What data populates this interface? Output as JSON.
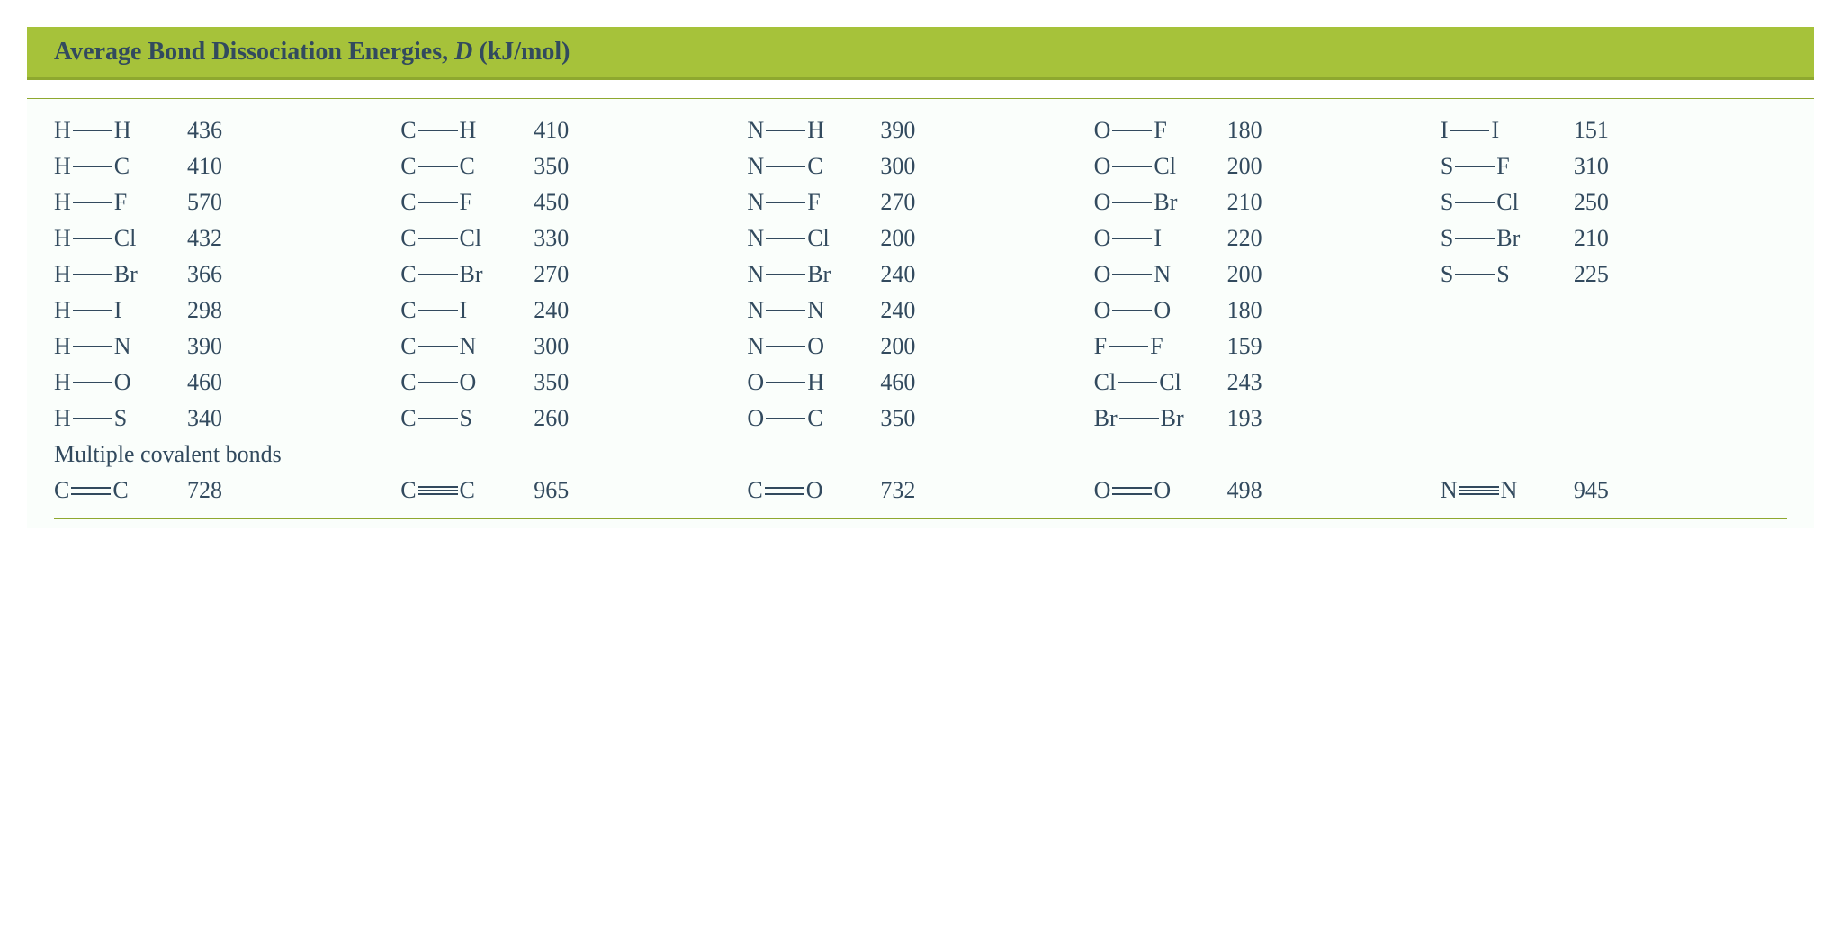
{
  "colors": {
    "header_bg": "#a6c23a",
    "header_border": "#8ea82f",
    "text": "#324a5e",
    "rule": "#8ea82f",
    "body_bg": "#fafefb"
  },
  "title_prefix": "Average Bond Dissociation Energies, ",
  "title_italic": "D",
  "title_suffix": " (kJ/mol)",
  "single_bonds": [
    [
      [
        "H",
        "H",
        "436"
      ],
      [
        "C",
        "H",
        "410"
      ],
      [
        "N",
        "H",
        "390"
      ],
      [
        "O",
        "F",
        "180"
      ],
      [
        "I",
        "I",
        "151"
      ]
    ],
    [
      [
        "H",
        "C",
        "410"
      ],
      [
        "C",
        "C",
        "350"
      ],
      [
        "N",
        "C",
        "300"
      ],
      [
        "O",
        "Cl",
        "200"
      ],
      [
        "S",
        "F",
        "310"
      ]
    ],
    [
      [
        "H",
        "F",
        "570"
      ],
      [
        "C",
        "F",
        "450"
      ],
      [
        "N",
        "F",
        "270"
      ],
      [
        "O",
        "Br",
        "210"
      ],
      [
        "S",
        "Cl",
        "250"
      ]
    ],
    [
      [
        "H",
        "Cl",
        "432"
      ],
      [
        "C",
        "Cl",
        "330"
      ],
      [
        "N",
        "Cl",
        "200"
      ],
      [
        "O",
        "I",
        "220"
      ],
      [
        "S",
        "Br",
        "210"
      ]
    ],
    [
      [
        "H",
        "Br",
        "366"
      ],
      [
        "C",
        "Br",
        "270"
      ],
      [
        "N",
        "Br",
        "240"
      ],
      [
        "O",
        "N",
        "200"
      ],
      [
        "S",
        "S",
        "225"
      ]
    ],
    [
      [
        "H",
        "I",
        "298"
      ],
      [
        "C",
        "I",
        "240"
      ],
      [
        "N",
        "N",
        "240"
      ],
      [
        "O",
        "O",
        "180"
      ],
      [
        "",
        "",
        ""
      ]
    ],
    [
      [
        "H",
        "N",
        "390"
      ],
      [
        "C",
        "N",
        "300"
      ],
      [
        "N",
        "O",
        "200"
      ],
      [
        "F",
        "F",
        "159"
      ],
      [
        "",
        "",
        ""
      ]
    ],
    [
      [
        "H",
        "O",
        "460"
      ],
      [
        "C",
        "O",
        "350"
      ],
      [
        "O",
        "H",
        "460"
      ],
      [
        "Cl",
        "Cl",
        "243"
      ],
      [
        "",
        "",
        ""
      ]
    ],
    [
      [
        "H",
        "S",
        "340"
      ],
      [
        "C",
        "S",
        "260"
      ],
      [
        "O",
        "C",
        "350"
      ],
      [
        "Br",
        "Br",
        "193"
      ],
      [
        "",
        "",
        ""
      ]
    ]
  ],
  "sub_heading": "Multiple covalent bonds",
  "multiple_bonds": [
    {
      "a": "C",
      "b": "C",
      "type": "double",
      "val": "728"
    },
    {
      "a": "C",
      "b": "C",
      "type": "triple",
      "val": "965"
    },
    {
      "a": "C",
      "b": "O",
      "type": "double",
      "val": "732"
    },
    {
      "a": "O",
      "b": "O",
      "type": "double",
      "val": "498"
    },
    {
      "a": "N",
      "b": "N",
      "type": "triple",
      "val": "945"
    }
  ],
  "layout": {
    "columns": 5,
    "font_family": "Georgia, serif",
    "cell_fontsize": 26,
    "title_fontsize": 28
  }
}
